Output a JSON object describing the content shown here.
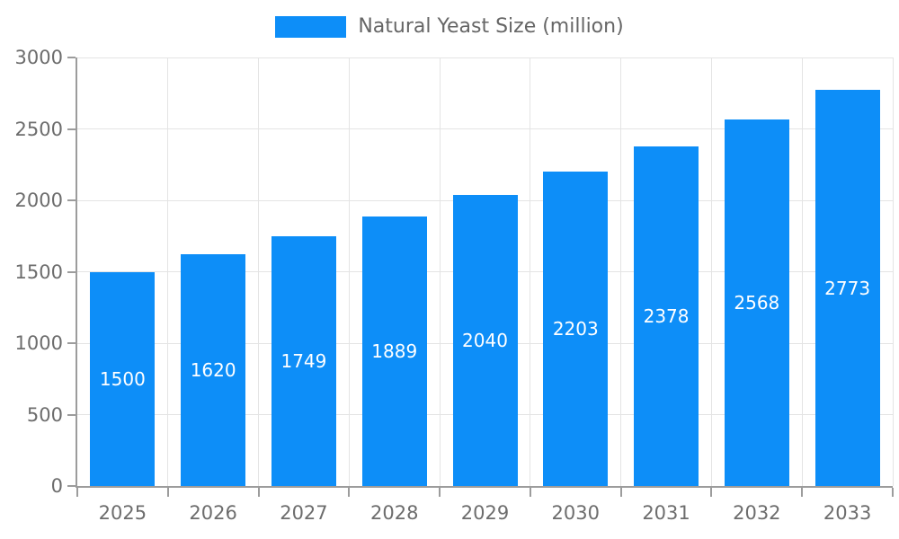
{
  "chart_data": {
    "type": "bar",
    "title": "",
    "legend_position": "top",
    "categories": [
      "2025",
      "2026",
      "2027",
      "2028",
      "2029",
      "2030",
      "2031",
      "2032",
      "2033"
    ],
    "series": [
      {
        "name": "Natural Yeast Size (million)",
        "values": [
          1500,
          1620,
          1749,
          1889,
          2040,
          2203,
          2378,
          2568,
          2773
        ]
      }
    ],
    "bar_labels": [
      "1500",
      "1620",
      "1749",
      "1889",
      "2040",
      "2203",
      "2378",
      "2568",
      "2773"
    ],
    "xlabel": "",
    "ylabel": "",
    "ylim": [
      0,
      3000
    ],
    "yticks": [
      0,
      500,
      1000,
      1500,
      2000,
      2500,
      3000
    ],
    "grid": true
  },
  "colors": {
    "bar": "#0d8ef8",
    "axis": "#9c9c9c",
    "gridline": "#e4e4e4",
    "tick_label": "#6d6d6d",
    "legend_text": "#666666",
    "bar_label": "#ffffff",
    "background": "#ffffff"
  }
}
